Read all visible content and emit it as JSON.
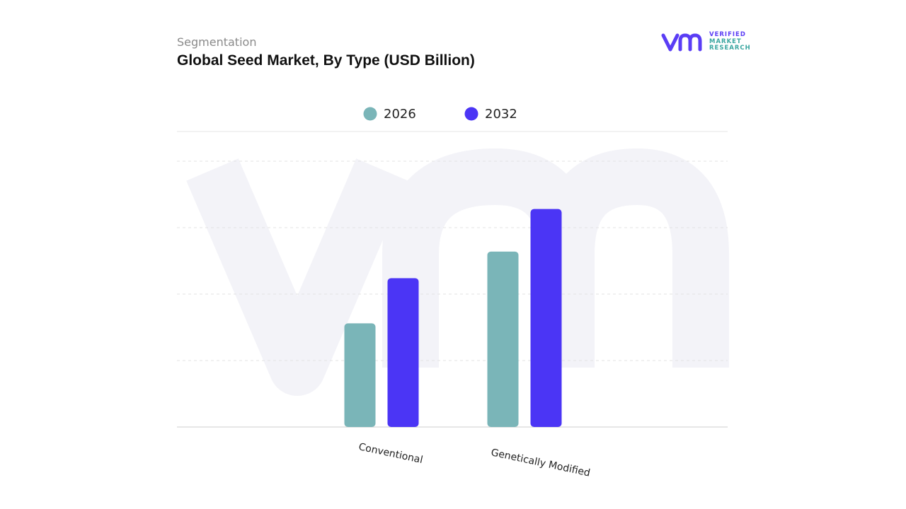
{
  "header": {
    "subtitle": "Segmentation",
    "title": "Global Seed Market, By Type (USD Billion)"
  },
  "logo": {
    "line1": "VERIFIED",
    "line2": "MARKET",
    "line3": "RESEARCH",
    "colors": {
      "primary": "#5a3df5",
      "secondary": "#3aa6a0"
    }
  },
  "chart_data": {
    "type": "bar",
    "categories": [
      "Conventional",
      "Genetically Modified"
    ],
    "series": [
      {
        "name": "2026",
        "color": "#7ab5b8",
        "values": [
          39,
          66
        ]
      },
      {
        "name": "2032",
        "color": "#4b35f5",
        "values": [
          56,
          82
        ]
      }
    ],
    "xlabel": "",
    "ylabel": "",
    "ylim": [
      0,
      100
    ],
    "grid": true,
    "legend": "top-center"
  }
}
